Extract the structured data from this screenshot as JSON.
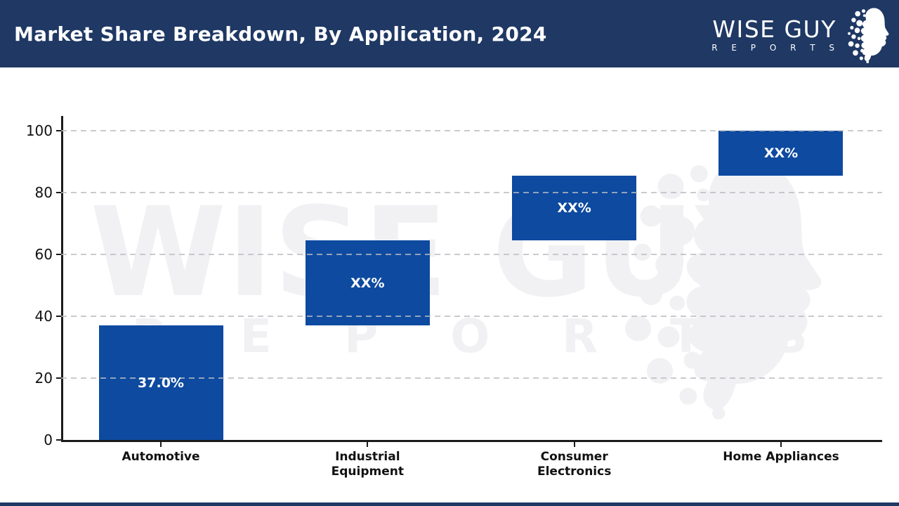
{
  "header": {
    "title": "Market Share Breakdown, By Application, 2024",
    "logo": {
      "main": "WISE GUY",
      "sub": "R E P O R T S"
    }
  },
  "watermark": {
    "main": "WISE GUY",
    "sub": "R E P O R T S"
  },
  "colors": {
    "header_bg": "#1f3864",
    "bar_blue": "#0d4aa0",
    "grid": "#bfc2c6",
    "watermark": "#f1f1f4",
    "axis": "#1a1a1a",
    "bar_label": "#ffffff"
  },
  "chart_data": {
    "type": "bar",
    "subtype": "waterfall-stair",
    "title": "Market Share Breakdown, By Application, 2024",
    "xlabel": "",
    "ylabel": "",
    "ylim": [
      0,
      100
    ],
    "yticks": [
      0,
      20,
      40,
      60,
      80,
      100
    ],
    "grid": "dashed horizontal, drawn above bars",
    "legend": "none",
    "categories": [
      "Automotive",
      "Industrial Equipment",
      "Consumer Electronics",
      "Home Appliances"
    ],
    "category_lines": [
      [
        "Automotive"
      ],
      [
        "Industrial",
        "Equipment"
      ],
      [
        "Consumer",
        "Electronics"
      ],
      [
        "Home Appliances"
      ]
    ],
    "segments": [
      {
        "category": "Automotive",
        "start": 0,
        "end": 37,
        "label": "37.0%"
      },
      {
        "category": "Industrial Equipment",
        "start": 37,
        "end": 64.5,
        "label": "XX%"
      },
      {
        "category": "Consumer Electronics",
        "start": 64.5,
        "end": 85.5,
        "label": "XX%"
      },
      {
        "category": "Home Appliances",
        "start": 85.5,
        "end": 100,
        "label": "XX%"
      }
    ]
  }
}
